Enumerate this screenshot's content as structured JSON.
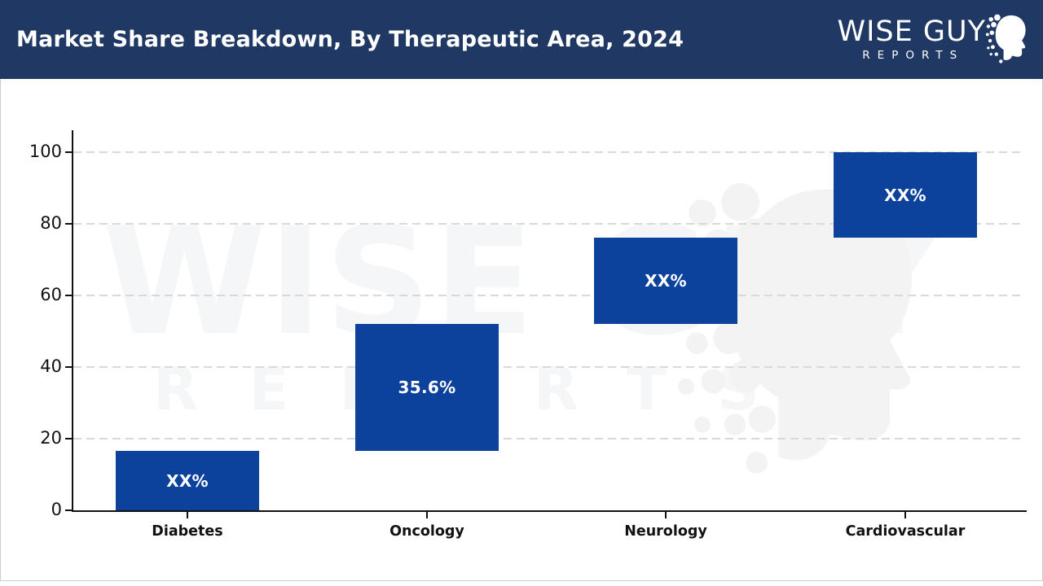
{
  "header": {
    "title": "Market Share Breakdown, By Therapeutic Area, 2024",
    "logo": {
      "line1": "WISE GUY",
      "line2": "REPORTS"
    }
  },
  "watermark": {
    "big_text": "WISE GUY",
    "sub_text": "REPORTS"
  },
  "colors": {
    "header_bg": "#1f3864",
    "bar": "#0c419c",
    "bar_label": "#ffffff",
    "grid": "#d9d9d9",
    "axis": "#111111",
    "watermark": "#f4f4f4"
  },
  "chart_data": {
    "type": "bar",
    "subtype": "floating-waterfall",
    "title": "Market Share Breakdown, By Therapeutic Area, 2024",
    "categories": [
      "Diabetes",
      "Oncology",
      "Neurology",
      "Cardiovascular"
    ],
    "segments": [
      {
        "category": "Diabetes",
        "start": 0,
        "end": 16.5,
        "label": "XX%"
      },
      {
        "category": "Oncology",
        "start": 16.5,
        "end": 52.1,
        "label": "35.6%"
      },
      {
        "category": "Neurology",
        "start": 52.1,
        "end": 76.1,
        "label": "XX%"
      },
      {
        "category": "Cardiovascular",
        "start": 76.1,
        "end": 100,
        "label": "XX%"
      }
    ],
    "xlabel": "",
    "ylabel": "",
    "ylim": [
      0,
      100
    ],
    "yticks": [
      0,
      20,
      40,
      60,
      80,
      100
    ],
    "grid": "dashed-horizontal",
    "legend": "none"
  }
}
